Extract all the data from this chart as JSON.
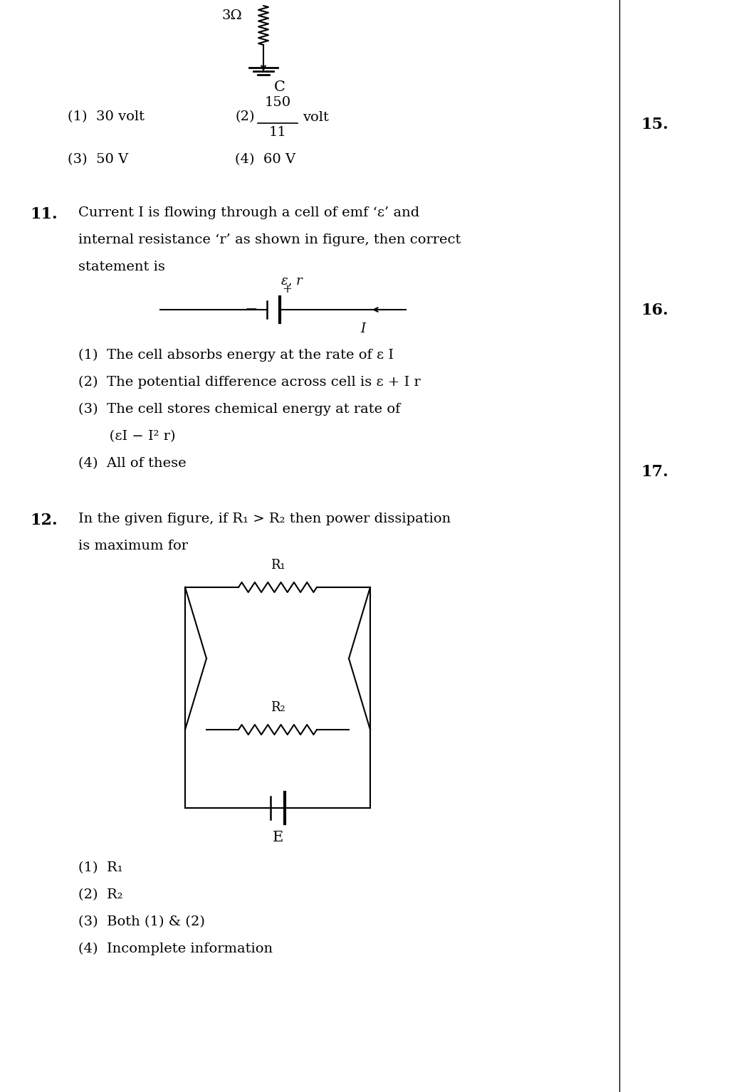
{
  "bg_color": "#ffffff",
  "text_color": "#000000",
  "fig_width": 10.24,
  "fig_height": 15.34,
  "top_resistor_label": "3Ω",
  "top_cap_label": "C",
  "ans_1_1": "(1)  30 volt",
  "ans_1_3": "(3)  50 V",
  "ans_1_4": "(4)  60 V",
  "q11_num": "11.",
  "q11_text_line1": "Current I is flowing through a cell of emf ‘ε’ and",
  "q11_text_line2": "internal resistance ‘r’ as shown in figure, then correct",
  "q11_text_line3": "statement is",
  "q11_circuit_label": "ε, r",
  "q11_circuit_minus": "−",
  "q11_circuit_plus": "+",
  "q11_circuit_I": "I",
  "q11_opt1": "(1)  The cell absorbs energy at the rate of ε I",
  "q11_opt2": "(2)  The potential difference across cell is ε + I r",
  "q11_opt3_line1": "(3)  The cell stores chemical energy at rate of",
  "q11_opt3_line2": "       (εI − I² r)",
  "q11_opt4": "(4)  All of these",
  "q12_num": "12.",
  "q12_text_line1": "In the given figure, if R₁ > R₂ then power dissipation",
  "q12_text_line2": "is maximum for",
  "q12_R1_label": "R₁",
  "q12_R2_label": "R₂",
  "q12_E_label": "E",
  "q12_opt1": "(1)  R₁",
  "q12_opt2": "(2)  R₂",
  "q12_opt3": "(3)  Both (1) & (2)",
  "q12_opt4": "(4)  Incomplete information",
  "right_num_15": "15.",
  "right_num_16": "16.",
  "right_num_17": "17.",
  "font_size_main": 14,
  "font_size_number": 15,
  "font_family": "DejaVu Serif"
}
